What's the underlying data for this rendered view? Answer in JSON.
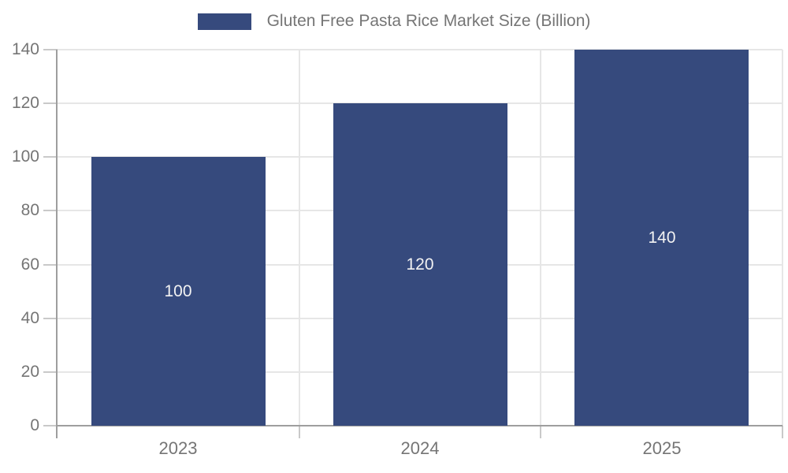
{
  "chart_data": {
    "type": "bar",
    "title": "",
    "series_name": "Gluten Free Pasta Rice Market Size (Billion)",
    "categories": [
      "2023",
      "2024",
      "2025"
    ],
    "values": [
      100,
      120,
      140
    ],
    "bar_labels": [
      "100",
      "120",
      "140"
    ],
    "ylim": [
      0,
      140
    ],
    "yticks": [
      0,
      20,
      40,
      60,
      80,
      100,
      120,
      140
    ],
    "grid": true,
    "legend_position": "top-center",
    "colors": {
      "bar": "#364A7D",
      "bar_label_text": "#f2f2f2",
      "axis_text": "#757575",
      "axis_line": "#9e9e9e",
      "gridline": "#e6e6e6",
      "tick": "#c9c9c9"
    }
  }
}
